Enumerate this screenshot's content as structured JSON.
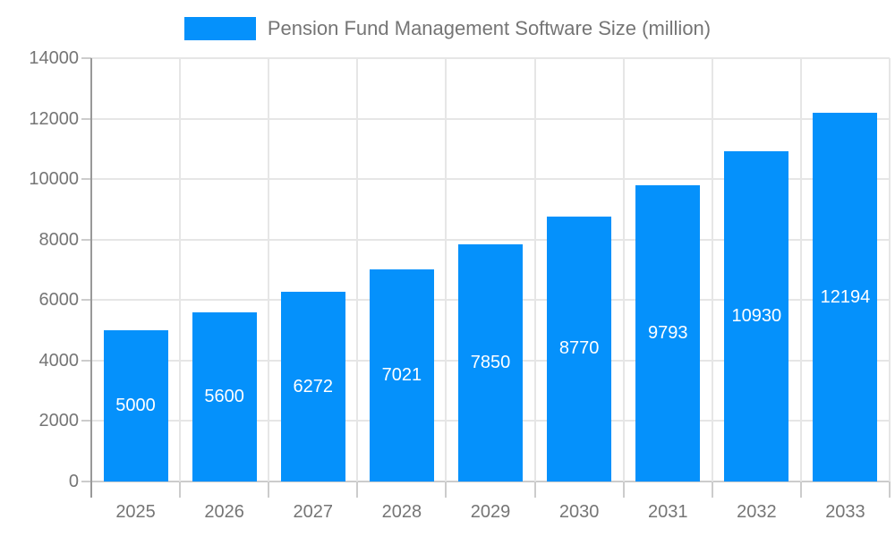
{
  "chart_data": {
    "type": "bar",
    "title": "Pension Fund Management Software Size (million)",
    "categories": [
      "2025",
      "2026",
      "2027",
      "2028",
      "2029",
      "2030",
      "2031",
      "2032",
      "2033"
    ],
    "series": [
      {
        "name": "Pension Fund Management Software Size (million)",
        "values": [
          5000,
          5600,
          6272,
          7021,
          7850,
          8770,
          9793,
          10930,
          12194
        ]
      }
    ],
    "bar_value_labels": [
      "5000",
      "5600",
      "6272",
      "7021",
      "7850",
      "8770",
      "9793",
      "10930",
      "12194"
    ],
    "yticks": [
      0,
      2000,
      4000,
      6000,
      8000,
      10000,
      12000,
      14000
    ],
    "ytick_labels": [
      "0",
      "2000",
      "4000",
      "6000",
      "8000",
      "10000",
      "12000",
      "14000"
    ],
    "ylim": [
      0,
      14000
    ],
    "xlabel": "",
    "ylabel": "",
    "grid": true,
    "legend_position": "top",
    "colors": {
      "bar": "#0591fb",
      "bar_value_text": "#ffffff",
      "axis_text": "#757575",
      "legend_text": "#757575",
      "gridline": "#e6e6e6",
      "baseline": "#cccccc",
      "axis_line": "#999999",
      "tick": "#cccccc"
    }
  }
}
